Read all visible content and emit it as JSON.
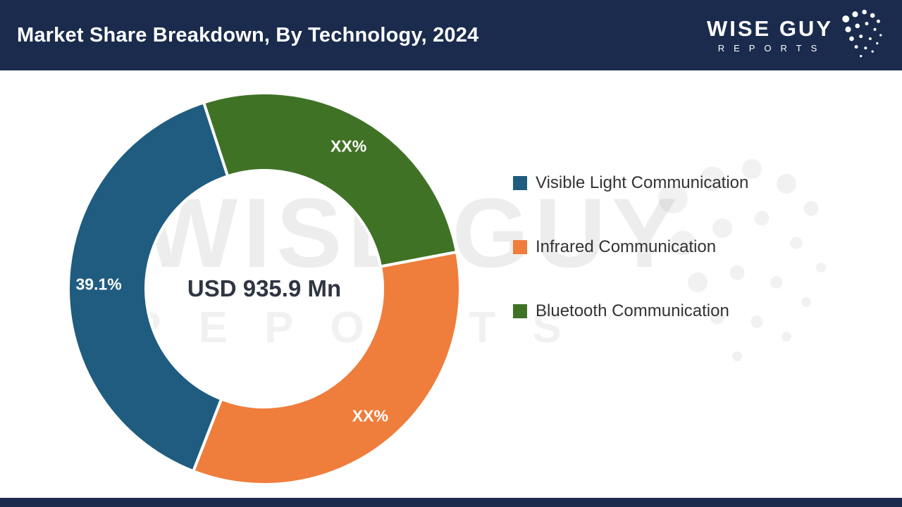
{
  "header": {
    "title": "Market Share Breakdown, By Technology, 2024",
    "bg": "#1A2B4D",
    "logo": {
      "line1": "WISE GUY",
      "line2": "REPORTS"
    }
  },
  "watermark": {
    "line1": "WISE GUY",
    "line2": "REPORTS"
  },
  "footer": {
    "bg": "#1A2B4D"
  },
  "chart_data": {
    "type": "pie",
    "subtype": "donut",
    "title": "Market Share Breakdown, By Technology, 2024",
    "center_label": "USD 935.9 Mn",
    "start_angle_deg": -18,
    "outer_radius": 278,
    "inner_radius": 168,
    "slices": [
      {
        "id": "bluetooth",
        "name": "Bluetooth Communication",
        "pct_label": "XX%",
        "fraction": 0.27,
        "color": "#407226"
      },
      {
        "id": "infrared",
        "name": "Infrared Communication",
        "pct_label": "XX%",
        "fraction": 0.339,
        "color": "#EF7D3B"
      },
      {
        "id": "visible-light",
        "name": "Visible Light Communication",
        "pct_label": "39.1%",
        "fraction": 0.391,
        "color": "#1F5C80"
      }
    ],
    "legend": [
      {
        "label": "Visible Light Communication",
        "color": "#1F5C80"
      },
      {
        "label": "Infrared Communication",
        "color": "#EF7D3B"
      },
      {
        "label": "Bluetooth Communication",
        "color": "#407226"
      }
    ],
    "legend_position": "right"
  }
}
